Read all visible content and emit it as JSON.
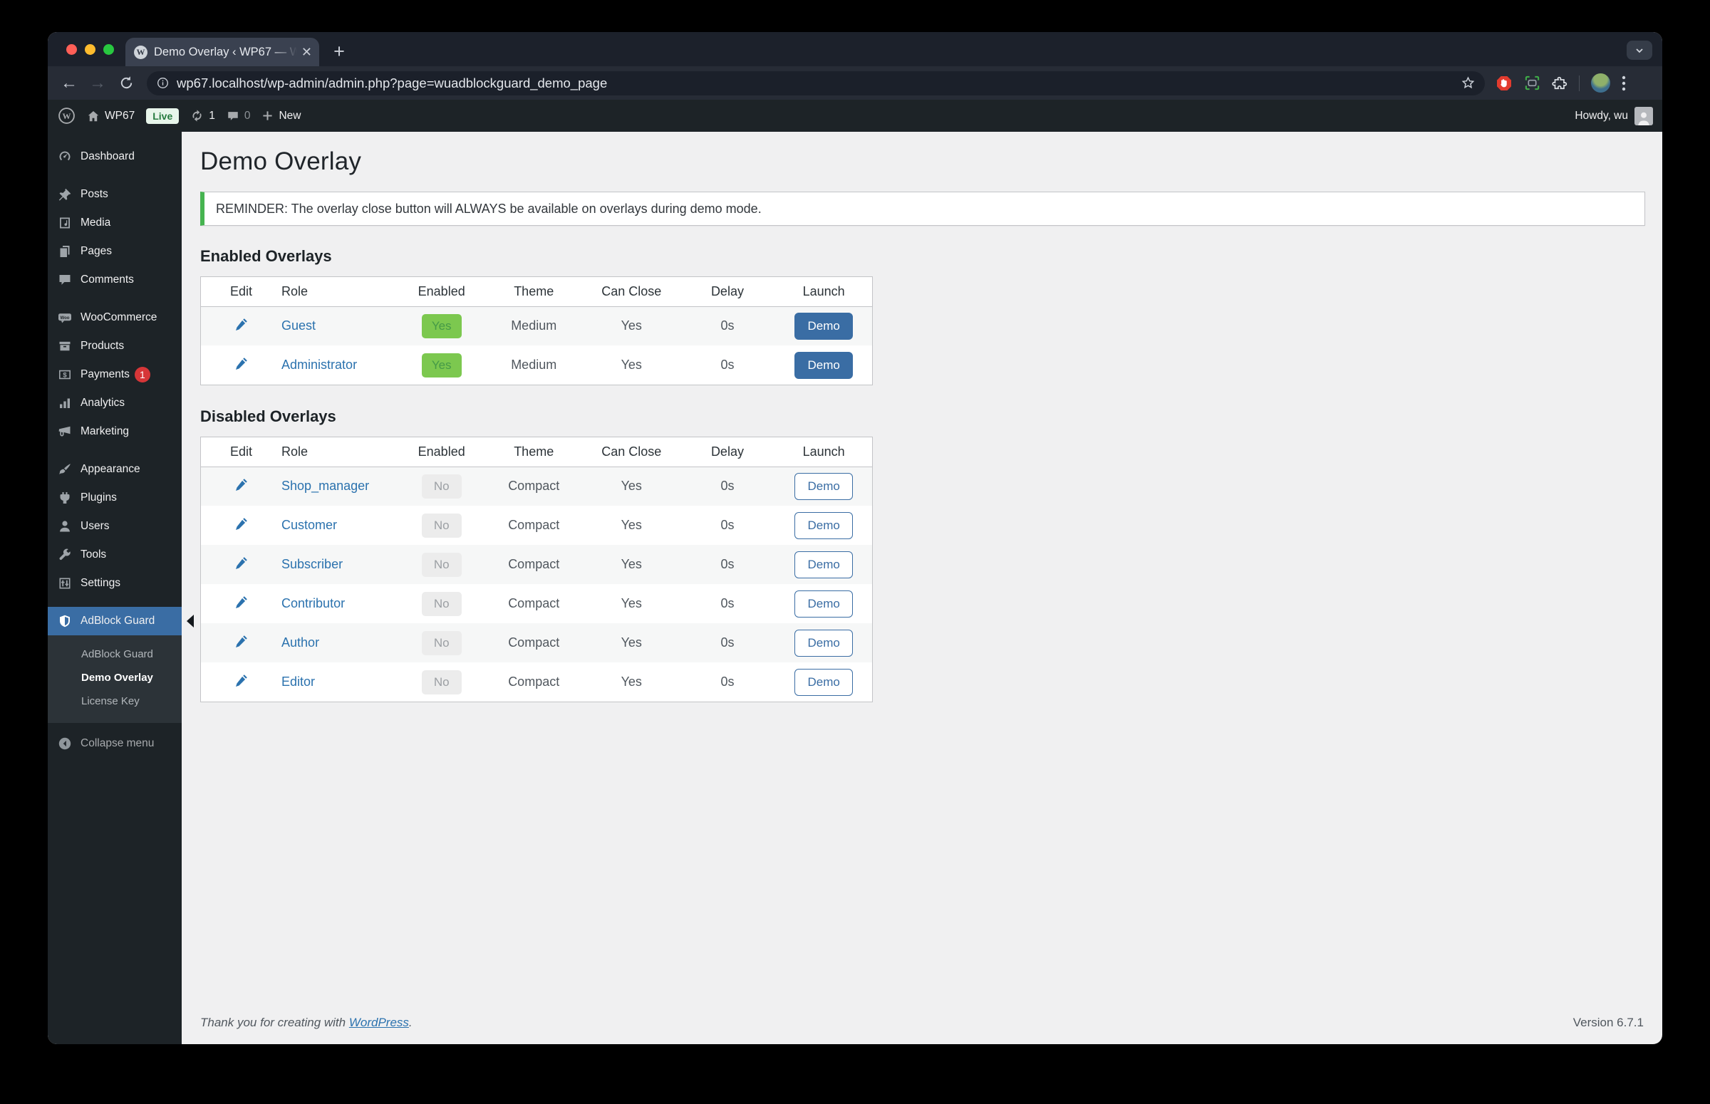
{
  "browser": {
    "tab_title": "Demo Overlay ‹ WP67 — Wor",
    "url": "wp67.localhost/wp-admin/admin.php?page=wuadblockguard_demo_page",
    "favicon_letter": "W"
  },
  "admin_bar": {
    "site_name": "WP67",
    "live_badge": "Live",
    "update_count": "1",
    "comment_count": "0",
    "new_label": "New",
    "howdy": "Howdy, wu"
  },
  "sidebar": {
    "items": [
      {
        "label": "Dashboard",
        "icon": "dashboard"
      },
      {
        "label": "Posts",
        "icon": "posts",
        "gap": true
      },
      {
        "label": "Media",
        "icon": "media"
      },
      {
        "label": "Pages",
        "icon": "pages"
      },
      {
        "label": "Comments",
        "icon": "comments"
      },
      {
        "label": "WooCommerce",
        "icon": "woocommerce",
        "gap": true
      },
      {
        "label": "Products",
        "icon": "products"
      },
      {
        "label": "Payments",
        "icon": "payments",
        "badge": "1"
      },
      {
        "label": "Analytics",
        "icon": "analytics"
      },
      {
        "label": "Marketing",
        "icon": "marketing"
      },
      {
        "label": "Appearance",
        "icon": "appearance",
        "gap": true
      },
      {
        "label": "Plugins",
        "icon": "plugins"
      },
      {
        "label": "Users",
        "icon": "users"
      },
      {
        "label": "Tools",
        "icon": "tools"
      },
      {
        "label": "Settings",
        "icon": "settings"
      },
      {
        "label": "AdBlock Guard",
        "icon": "shield",
        "gap": true,
        "active": true
      }
    ],
    "submenu": [
      {
        "label": "AdBlock Guard"
      },
      {
        "label": "Demo Overlay",
        "current": true
      },
      {
        "label": "License Key"
      }
    ],
    "collapse_label": "Collapse menu"
  },
  "page": {
    "title": "Demo Overlay",
    "notice": "REMINDER: The overlay close button will ALWAYS be available on overlays during demo mode.",
    "tables": [
      {
        "heading": "Enabled Overlays",
        "columns": [
          "Edit",
          "Role",
          "Enabled",
          "Theme",
          "Can Close",
          "Delay",
          "Launch"
        ],
        "rows": [
          {
            "role": "Guest",
            "enabled": "Yes",
            "theme": "Medium",
            "can_close": "Yes",
            "delay": "0s",
            "launch": "Demo"
          },
          {
            "role": "Administrator",
            "enabled": "Yes",
            "theme": "Medium",
            "can_close": "Yes",
            "delay": "0s",
            "launch": "Demo"
          }
        ]
      },
      {
        "heading": "Disabled Overlays",
        "columns": [
          "Edit",
          "Role",
          "Enabled",
          "Theme",
          "Can Close",
          "Delay",
          "Launch"
        ],
        "rows": [
          {
            "role": "Shop_manager",
            "enabled": "No",
            "theme": "Compact",
            "can_close": "Yes",
            "delay": "0s",
            "launch": "Demo"
          },
          {
            "role": "Customer",
            "enabled": "No",
            "theme": "Compact",
            "can_close": "Yes",
            "delay": "0s",
            "launch": "Demo"
          },
          {
            "role": "Subscriber",
            "enabled": "No",
            "theme": "Compact",
            "can_close": "Yes",
            "delay": "0s",
            "launch": "Demo"
          },
          {
            "role": "Contributor",
            "enabled": "No",
            "theme": "Compact",
            "can_close": "Yes",
            "delay": "0s",
            "launch": "Demo"
          },
          {
            "role": "Author",
            "enabled": "No",
            "theme": "Compact",
            "can_close": "Yes",
            "delay": "0s",
            "launch": "Demo"
          },
          {
            "role": "Editor",
            "enabled": "No",
            "theme": "Compact",
            "can_close": "Yes",
            "delay": "0s",
            "launch": "Demo"
          }
        ]
      }
    ]
  },
  "footer": {
    "thanks_prefix": "Thank you for creating with ",
    "thanks_link": "WordPress",
    "thanks_suffix": ".",
    "version": "Version 6.7.1"
  },
  "colors": {
    "accent_blue": "#3a6da4",
    "link_blue": "#2b72ae",
    "notice_green": "#46b450",
    "yes_badge_bg": "#7cc84f",
    "no_badge_bg": "#ececec",
    "payments_badge_red": "#d63638",
    "live_badge_green": "#257a3e"
  }
}
